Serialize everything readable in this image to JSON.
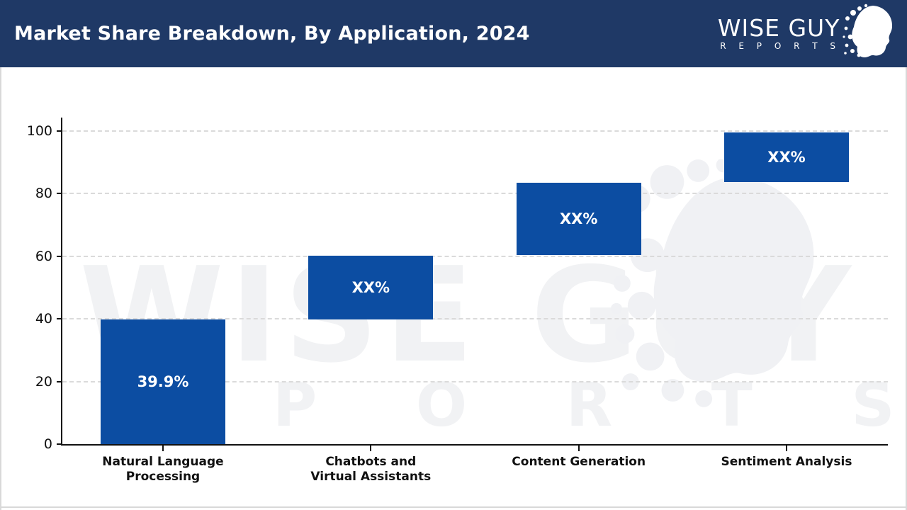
{
  "header": {
    "title": "Market Share Breakdown, By Application, 2024",
    "bg_color": "#1f3966",
    "logo": {
      "line1": "WISE GUY",
      "line2": "R E P O R T S"
    }
  },
  "watermark": {
    "line1": "WISE GUY",
    "line2": "P O R T S"
  },
  "chart_data": {
    "type": "bar",
    "subtype": "waterfall",
    "title": "Market Share Breakdown, By Application, 2024",
    "xlabel": "",
    "ylabel": "",
    "ylim": [
      0,
      105
    ],
    "y_ticks": [
      0,
      20,
      40,
      60,
      80,
      100
    ],
    "grid": "horizontal-dashed",
    "grid_color": "#dadada",
    "bar_color": "#0c4da2",
    "value_label_color": "#ffffff",
    "categories": [
      "Natural Language Processing",
      "Chatbots and Virtual Assistants",
      "Content Generation",
      "Sentiment Analysis"
    ],
    "bars": [
      {
        "category": "Natural Language Processing",
        "lines": [
          "Natural Language",
          "Processing"
        ],
        "start": 0,
        "end": 39.9,
        "label": "39.9%"
      },
      {
        "category": "Chatbots and Virtual Assistants",
        "lines": [
          "Chatbots and",
          "Virtual Assistants"
        ],
        "start": 39.9,
        "end": 60.1,
        "label": "XX%"
      },
      {
        "category": "Content Generation",
        "lines": [
          "Content Generation"
        ],
        "start": 60.3,
        "end": 83.5,
        "label": "XX%"
      },
      {
        "category": "Sentiment Analysis",
        "lines": [
          "Sentiment Analysis"
        ],
        "start": 83.6,
        "end": 99.5,
        "label": "XX%"
      }
    ]
  }
}
